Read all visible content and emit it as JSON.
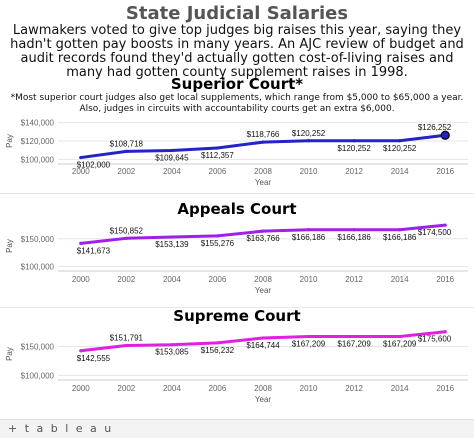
{
  "header": {
    "title": "State Judicial Salaries",
    "intro": "Lawmakers voted to give top judges big raises this year, saying they hadn't gotten pay boosts in many years. An AJC review of budget and audit records found they'd actually gotten cost-of-living raises and many had gotten county supplement raises in 1998."
  },
  "footer": {
    "logo": "+ t a b l e a u"
  },
  "chart_data": [
    {
      "type": "line",
      "title": "Superior Court*",
      "note": "*Most superior court judges also get local supplements, which range from $5,000 to $65,000 a year. Also, judges in circuits with accountability courts get an extra $6,000.",
      "xlabel": "Year",
      "ylabel": "Pay",
      "x": [
        2000,
        2002,
        2004,
        2006,
        2008,
        2010,
        2012,
        2014,
        2016
      ],
      "values": [
        102000,
        108718,
        109645,
        112357,
        118766,
        120252,
        120252,
        120252,
        126252
      ],
      "data_labels": [
        "$102,000",
        "$108,718",
        "$109,645",
        "$112,357",
        "$118,766",
        "$120,252",
        "$120,252",
        "$120,252",
        "$126,252"
      ],
      "label_pos": [
        "below",
        "above",
        "below",
        "below",
        "above",
        "above",
        "below",
        "below",
        "above"
      ],
      "ylim": [
        95000,
        145000
      ],
      "yticks": [
        100000,
        120000,
        140000
      ],
      "ytick_labels": [
        "$100,000",
        "$120,000",
        "$140,000"
      ],
      "xlim": [
        1999,
        2017
      ],
      "color": "#2323c8",
      "end_marker": true
    },
    {
      "type": "line",
      "title": "Appeals Court",
      "xlabel": "Year",
      "ylabel": "Pay",
      "x": [
        2000,
        2002,
        2004,
        2006,
        2008,
        2010,
        2012,
        2014,
        2016
      ],
      "values": [
        141673,
        150852,
        153139,
        155276,
        163766,
        166186,
        166186,
        166186,
        174500
      ],
      "data_labels": [
        "$141,673",
        "$150,852",
        "$153,139",
        "$155,276",
        "$163,766",
        "$166,186",
        "$166,186",
        "$166,186",
        "$174,500"
      ],
      "label_pos": [
        "below",
        "above",
        "below",
        "below",
        "below",
        "below",
        "below",
        "below",
        "below"
      ],
      "ylim": [
        92000,
        182000
      ],
      "yticks": [
        100000,
        150000
      ],
      "ytick_labels": [
        "$100,000",
        "$150,000"
      ],
      "xlim": [
        1999,
        2017
      ],
      "color": "#a020e8",
      "end_marker": false
    },
    {
      "type": "line",
      "title": "Supreme Court",
      "xlabel": "Year",
      "ylabel": "Pay",
      "x": [
        2000,
        2002,
        2004,
        2006,
        2008,
        2010,
        2012,
        2014,
        2016
      ],
      "values": [
        142555,
        151791,
        153085,
        156232,
        164744,
        167209,
        167209,
        167209,
        175600
      ],
      "data_labels": [
        "$142,555",
        "$151,791",
        "$153,085",
        "$156,232",
        "$164,744",
        "$167,209",
        "$167,209",
        "$167,209",
        "$175,600"
      ],
      "label_pos": [
        "below",
        "above",
        "below",
        "below",
        "below",
        "below",
        "below",
        "below",
        "below"
      ],
      "ylim": [
        92000,
        182000
      ],
      "yticks": [
        100000,
        150000
      ],
      "ytick_labels": [
        "$100,000",
        "$150,000"
      ],
      "xlim": [
        1999,
        2017
      ],
      "color": "#e020e0",
      "end_marker": false
    }
  ]
}
